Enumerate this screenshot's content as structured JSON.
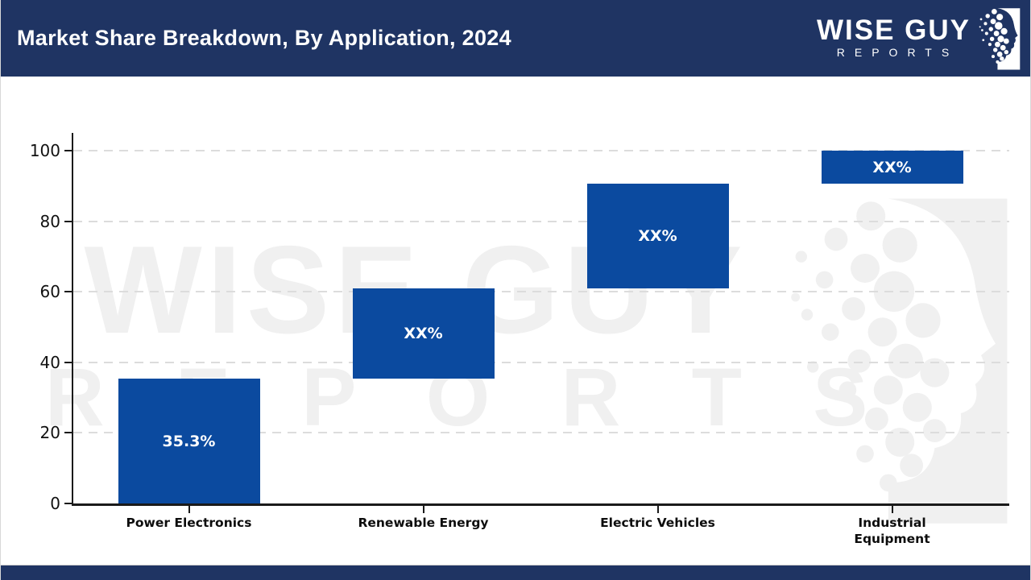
{
  "header": {
    "title": "Market Share Breakdown, By Application, 2024",
    "bg_color": "#1f3463"
  },
  "logo": {
    "line1": "WISE GUY",
    "line2": "REPORTS"
  },
  "watermark": {
    "line1": "WISE GUY",
    "line2": "R E P O R T S"
  },
  "chart_data": {
    "type": "bar",
    "subtype": "waterfall",
    "title": "Market Share Breakdown, By Application, 2024",
    "categories": [
      "Power Electronics",
      "Renewable Energy",
      "Electric Vehicles",
      "Industrial Equipment"
    ],
    "categories_display": [
      "Power Electronics",
      "Renewable Energy",
      "Electric Vehicles",
      "Industrial\nEquipment"
    ],
    "segments": [
      {
        "category": "Power Electronics",
        "start": 0,
        "end": 35.3,
        "label": "35.3%"
      },
      {
        "category": "Renewable Energy",
        "start": 35.3,
        "end": 61.0,
        "label": "XX%"
      },
      {
        "category": "Electric Vehicles",
        "start": 61.0,
        "end": 90.6,
        "label": "XX%"
      },
      {
        "category": "Industrial Equipment",
        "start": 90.6,
        "end": 100.0,
        "label": "XX%"
      }
    ],
    "ylim": [
      0,
      100
    ],
    "yticks": [
      0,
      20,
      40,
      60,
      80,
      100
    ],
    "grid": "horizontal-dashed",
    "grid_color": "#dcdcdc",
    "bar_color": "#0b4a9f",
    "bar_label_color": "#ffffff",
    "axis_color": "#1a1a1a",
    "legend": "none"
  }
}
